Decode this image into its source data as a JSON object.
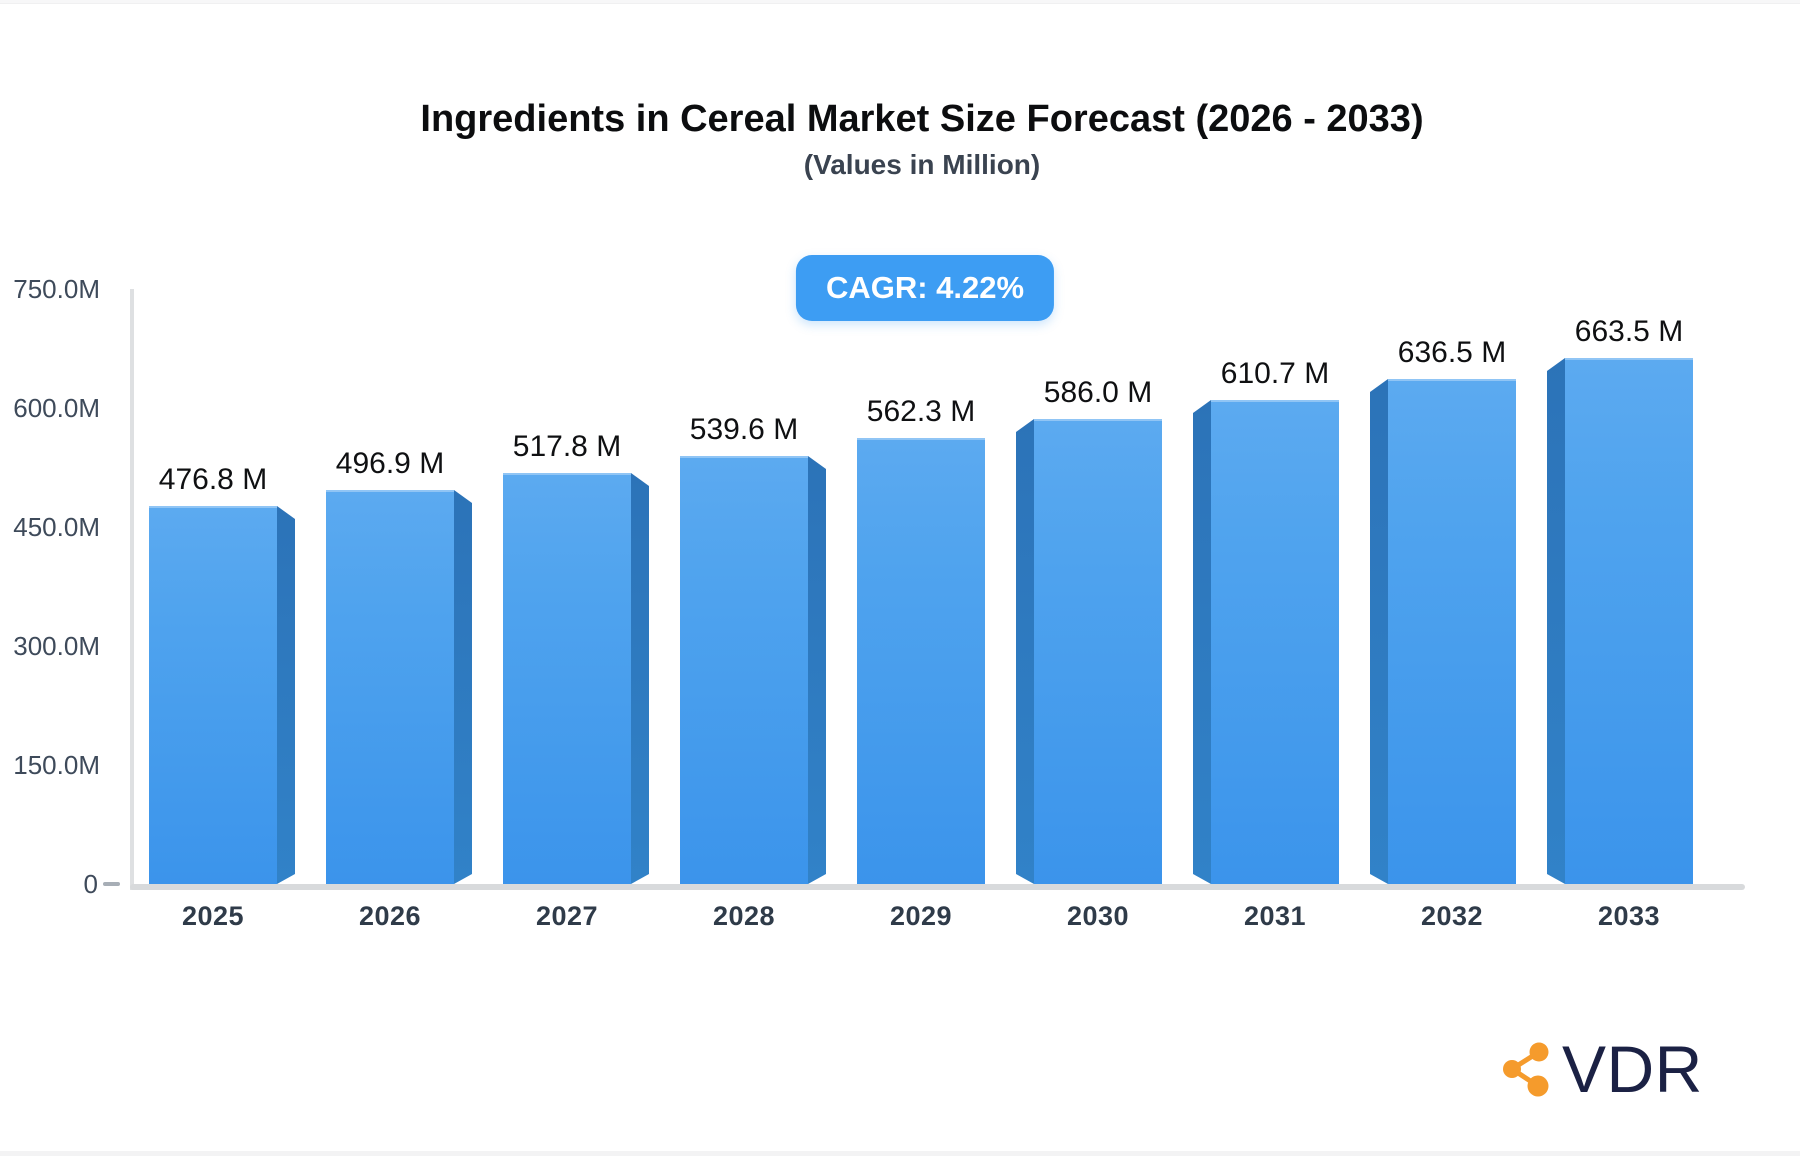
{
  "header": {
    "title": "Ingredients in Cereal Market Size Forecast (2026 - 2033)",
    "subtitle": "(Values in Million)",
    "cagr_badge": "CAGR: 4.22%"
  },
  "branding": {
    "logo_text": "VDR",
    "logo_icon": "share-network-icon"
  },
  "colors": {
    "bar_top": "#5caaf0",
    "bar_bottom": "#3b94eb",
    "bar_side_face": "#2e7abf",
    "badge_bg": "#3d9df3",
    "axis_line": "#dee0e2",
    "baseline": "#d8dadc",
    "y_tick_text": "#3e4a5a",
    "x_label_text": "#2f3b49",
    "value_label_text": "#0f1012",
    "title_text": "#0c0d0f",
    "subtitle_text": "#3a4350",
    "logo_navy": "#1b2144",
    "logo_orange": "#f59b2c"
  },
  "chart_data": {
    "type": "bar",
    "title": "Ingredients in Cereal Market Size Forecast (2026 - 2033)",
    "subtitle": "(Values in Million)",
    "annotation": "CAGR: 4.22%",
    "categories": [
      "2025",
      "2026",
      "2027",
      "2028",
      "2029",
      "2030",
      "2031",
      "2032",
      "2033"
    ],
    "values": [
      476.8,
      496.9,
      517.8,
      539.6,
      562.3,
      586.0,
      610.7,
      636.5,
      663.5
    ],
    "value_labels": [
      "476.8 M",
      "496.9 M",
      "517.8 M",
      "539.6 M",
      "562.3 M",
      "586.0 M",
      "610.7 M",
      "636.5 M",
      "663.5 M"
    ],
    "unit": "Million",
    "xlabel": "",
    "ylabel": "",
    "ylim": [
      0,
      750
    ],
    "y_axis": {
      "tick_values": [
        750,
        600,
        450,
        300,
        150
      ],
      "tick_labels": [
        "750.0M",
        "600.0M",
        "450.0M",
        "300.0M",
        "150.0M"
      ],
      "zero_label": "0"
    },
    "grid": false,
    "legend": false,
    "bar_style": "3d-perspective"
  }
}
